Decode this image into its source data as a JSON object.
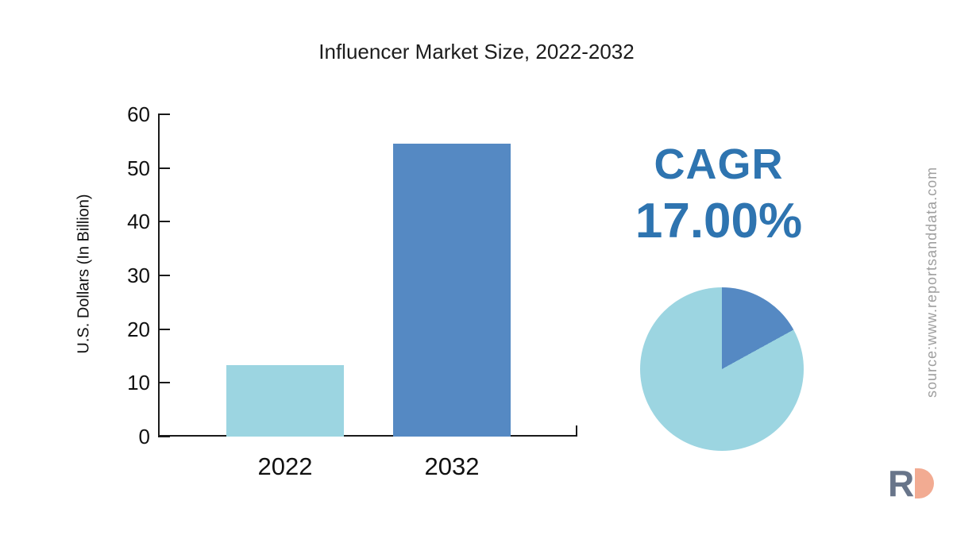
{
  "chart_data": [
    {
      "type": "bar",
      "title": "Influencer Market Size, 2022-2032",
      "categories": [
        "2022",
        "2032"
      ],
      "values": [
        13.3,
        54.5
      ],
      "bar_colors": [
        "#9cd5e1",
        "#5589c3"
      ],
      "xlabel": "",
      "ylabel": "U.S. Dollars (In Billion)",
      "ylim": [
        0,
        60
      ],
      "yticks": [
        0,
        10,
        20,
        30,
        40,
        50,
        60
      ],
      "grid": false,
      "legend": "none",
      "axis_color": "#1a1a1a"
    },
    {
      "type": "pie",
      "start": "top-clockwise",
      "slices": [
        {
          "name": "cagr-portion",
          "value": 17,
          "color": "#5589c3"
        },
        {
          "name": "remainder",
          "value": 83,
          "color": "#9cd5e1"
        }
      ]
    }
  ],
  "cagr": {
    "label": "CAGR",
    "value": "17.00%",
    "color": "#2e74b0"
  },
  "source": {
    "text": "source:www.reportsanddata.com"
  },
  "logo": {
    "r": "R",
    "r_color": "#68758a",
    "d_color": "#f2ab92"
  }
}
